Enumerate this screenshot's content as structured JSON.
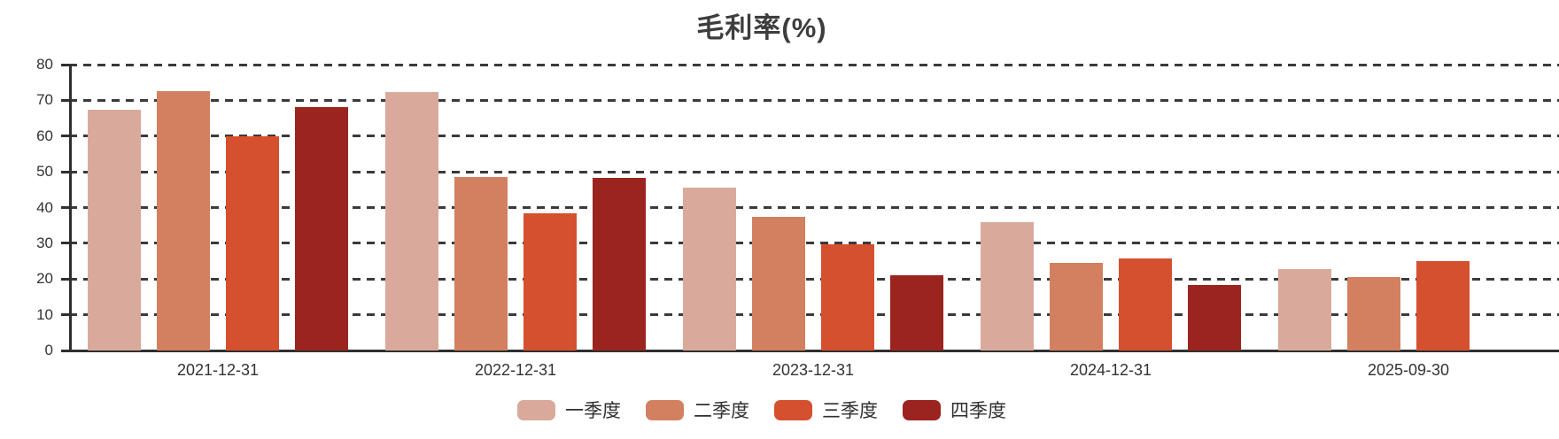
{
  "title": "毛利率(%)",
  "chart_data": {
    "type": "bar",
    "title": "毛利率(%)",
    "categories": [
      "2021-12-31",
      "2022-12-31",
      "2023-12-31",
      "2024-12-31",
      "2025-09-30"
    ],
    "series": [
      {
        "name": "一季度",
        "color": "#D9A99C",
        "values": [
          67.3,
          72.3,
          45.5,
          36.0,
          22.9
        ]
      },
      {
        "name": "二季度",
        "color": "#D28060",
        "values": [
          72.5,
          48.6,
          37.3,
          24.6,
          20.6
        ]
      },
      {
        "name": "三季度",
        "color": "#D5502E",
        "values": [
          60.0,
          38.3,
          29.6,
          25.7,
          25.0
        ]
      },
      {
        "name": "四季度",
        "color": "#9B241E",
        "values": [
          68.0,
          48.4,
          21.0,
          18.3,
          null
        ]
      }
    ],
    "xlabel": "",
    "ylabel": "",
    "ylim": [
      0,
      80
    ],
    "yticks": [
      0,
      10,
      20,
      30,
      40,
      50,
      60,
      70,
      80
    ],
    "grid": "dashed horizontal",
    "legend_position": "bottom",
    "axis_color": "#2f2f2f",
    "text_color": "#333333"
  }
}
